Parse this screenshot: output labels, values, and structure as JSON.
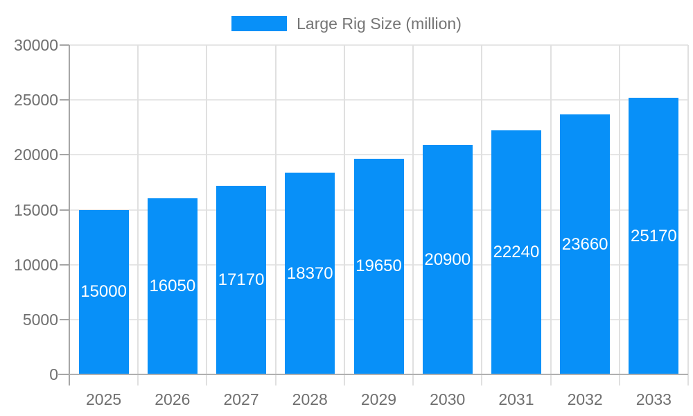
{
  "legend": {
    "label": "Large Rig Size (million)"
  },
  "colors": {
    "bar": "#0890F8",
    "grid_h": "#e6e6e6",
    "grid_v": "#e0e0e0",
    "axis": "#a6a6a6",
    "tick_label": "#6f6f6f",
    "legend_text": "#757575",
    "value_label": "#ffffff",
    "background": "#ffffff"
  },
  "chart_data": {
    "type": "bar",
    "categories": [
      "2025",
      "2026",
      "2027",
      "2028",
      "2029",
      "2030",
      "2031",
      "2032",
      "2033"
    ],
    "series": [
      {
        "name": "Large Rig Size (million)",
        "values": [
          15000,
          16050,
          17170,
          18370,
          19650,
          20900,
          22240,
          23660,
          25170
        ]
      }
    ],
    "title": "",
    "xlabel": "",
    "ylabel": "",
    "ylim": [
      0,
      30000
    ],
    "yticks": [
      0,
      5000,
      10000,
      15000,
      20000,
      25000,
      30000
    ],
    "grid": true,
    "legend_position": "top-center",
    "value_labels": "inside-middle-white"
  }
}
